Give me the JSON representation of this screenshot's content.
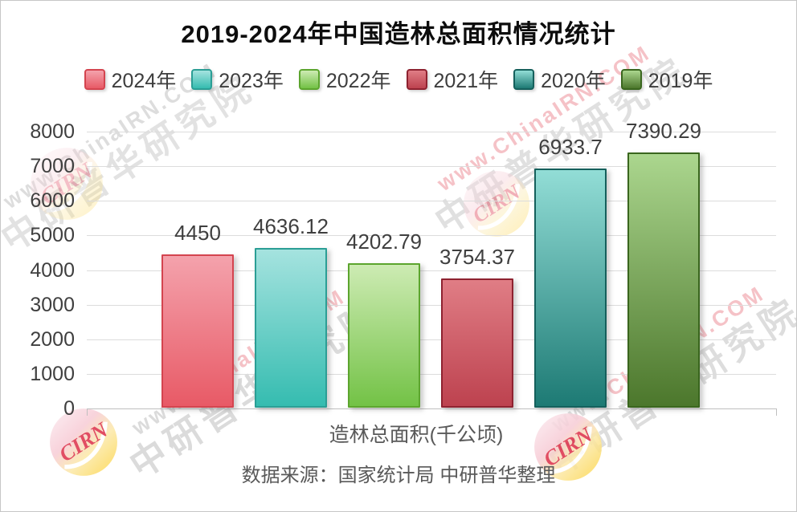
{
  "title": "2019-2024年中国造林总面积情况统计",
  "chart_data": {
    "type": "bar",
    "title": "2019-2024年中国造林总面积情况统计",
    "categories": [
      "2024年",
      "2023年",
      "2022年",
      "2021年",
      "2020年",
      "2019年"
    ],
    "values": [
      4450,
      4636.12,
      4202.79,
      3754.37,
      6933.7,
      7390.29
    ],
    "value_labels": [
      "4450",
      "4636.12",
      "4202.79",
      "3754.37",
      "6933.7",
      "7390.29"
    ],
    "xlabel": "造林总面积(千公顷)",
    "ylabel": "",
    "ylim": [
      0,
      8000
    ],
    "ytick_step": 1000,
    "grid": true,
    "legend_position": "top",
    "series_colors": [
      {
        "name": "2024年",
        "fill_top": "#f4a2ac",
        "fill_bottom": "#e85a66",
        "border": "#d4united"
      },
      {
        "name": "2023年",
        "fill_top": "#a5e3df",
        "fill_bottom": "#35bcb0",
        "border": "#2b9e95"
      },
      {
        "name": "2022年",
        "fill_top": "#cdebb3",
        "fill_bottom": "#73c246",
        "border": "#5ca52e"
      },
      {
        "name": "2021年",
        "fill_top": "#e07d85",
        "fill_bottom": "#bd424f",
        "border": "#8e2230"
      },
      {
        "name": "2020年",
        "fill_top": "#92ddd6",
        "fill_bottom": "#1d7a74",
        "border": "#15605c"
      },
      {
        "name": "2019年",
        "fill_top": "#abd68e",
        "fill_bottom": "#4c772c",
        "border": "#3a661e"
      }
    ]
  },
  "legend": [
    {
      "label": "2024年",
      "fill_top": "#f4a2ac",
      "fill_bottom": "#e85a66",
      "border": "#d4444f"
    },
    {
      "label": "2023年",
      "fill_top": "#a5e3df",
      "fill_bottom": "#35bcb0",
      "border": "#2b9e95"
    },
    {
      "label": "2022年",
      "fill_top": "#cdebb3",
      "fill_bottom": "#73c246",
      "border": "#5ca52e"
    },
    {
      "label": "2021年",
      "fill_top": "#e07d85",
      "fill_bottom": "#bd424f",
      "border": "#8e2230"
    },
    {
      "label": "2020年",
      "fill_top": "#92ddd6",
      "fill_bottom": "#1d7a74",
      "border": "#15605c"
    },
    {
      "label": "2019年",
      "fill_top": "#abd68e",
      "fill_bottom": "#4c772c",
      "border": "#3a661e"
    }
  ],
  "x_axis_label": "造林总面积(千公顷)",
  "footer": "数据来源：国家统计局 中研普华整理",
  "watermark": {
    "latin_prefix": "www.",
    "latin_main": "ChinaIRN.COM",
    "cjk": "中研普华研究院",
    "logo_text": "CIRN",
    "gray": "#8f8f8f",
    "red": "#e66672",
    "logo_red": "#dc2f48",
    "logo_yellow": "#fdd440",
    "logo_pink": "#f7ccd6"
  }
}
